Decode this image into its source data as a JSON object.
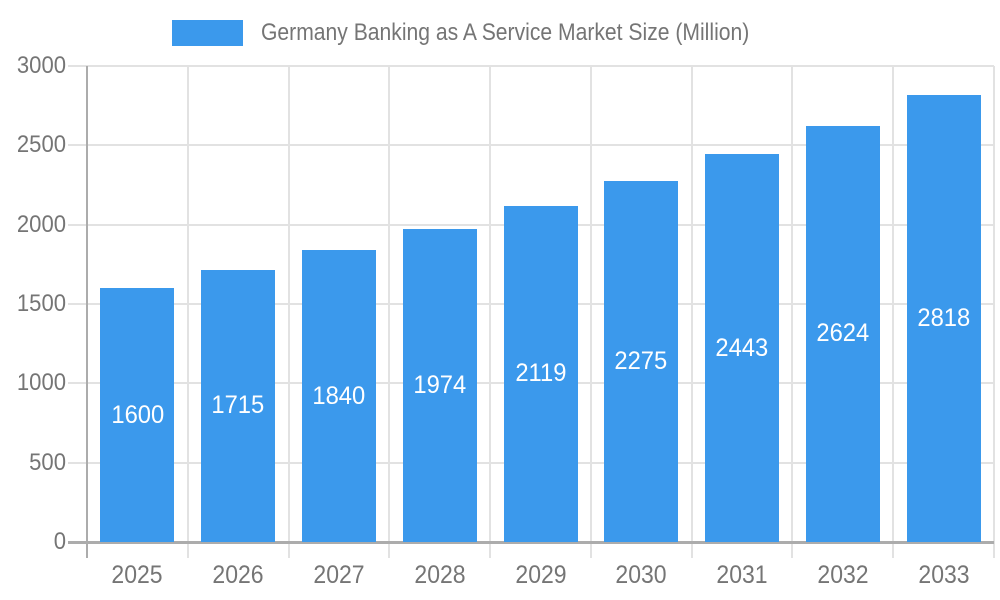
{
  "legend": {
    "label": "Germany Banking as A Service Market Size (Million)"
  },
  "chart_data": {
    "type": "bar",
    "title": "Germany Banking as A Service Market Size (Million)",
    "series_name": "Germany Banking as A Service Market Size (Million)",
    "categories": [
      "2025",
      "2026",
      "2027",
      "2028",
      "2029",
      "2030",
      "2031",
      "2032",
      "2033"
    ],
    "values": [
      1600,
      1715,
      1840,
      1974,
      2119,
      2275,
      2443,
      2624,
      2818
    ],
    "xlabel": "",
    "ylabel": "",
    "ylim": [
      0,
      3000
    ],
    "yticks": [
      0,
      500,
      1000,
      1500,
      2000,
      2500,
      3000
    ],
    "grid": true,
    "legend_position": "top",
    "bar_color": "#3b99ec",
    "bar_label_color": "#ffffff",
    "grid_color": "#e2e2e2",
    "axis_color": "#acacac",
    "tick_label_color": "#757575"
  }
}
